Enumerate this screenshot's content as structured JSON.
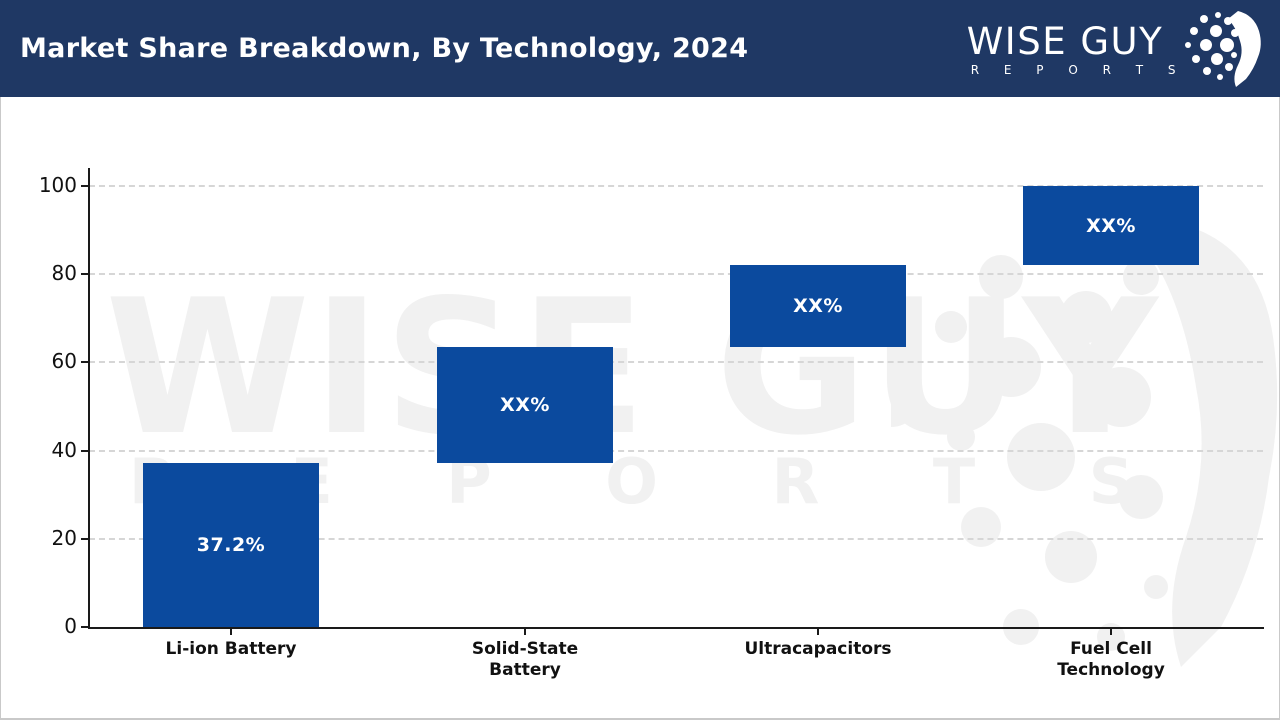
{
  "header": {
    "title": "Market Share Breakdown, By Technology, 2024",
    "logo": {
      "name": "WISE GUY",
      "sub": "R E P O R T S"
    }
  },
  "watermark": {
    "name": "WISE GUY",
    "sub": "R E P O R T S"
  },
  "colors": {
    "header_bg": "#1f3864",
    "bar": "#0b4a9e",
    "bar_label": "#ffffff",
    "grid": "#d6d6d6",
    "axis": "#1a1a1a",
    "watermark": "#f1f1f1"
  },
  "chart_data": {
    "type": "bar",
    "variant": "waterfall",
    "title": "Market Share Breakdown, By Technology, 2024",
    "categories": [
      "Li-ion Battery",
      "Solid-State\nBattery",
      "Ultracapacitors",
      "Fuel Cell\nTechnology"
    ],
    "segments": [
      {
        "category": "Li-ion Battery",
        "start": 0,
        "end": 37.2,
        "label": "37.2%"
      },
      {
        "category": "Solid-State Battery",
        "start": 37.2,
        "end": 63.4,
        "label": "XX%"
      },
      {
        "category": "Ultracapacitors",
        "start": 63.4,
        "end": 82.0,
        "label": "XX%"
      },
      {
        "category": "Fuel Cell Technology",
        "start": 82.0,
        "end": 100,
        "label": "XX%"
      }
    ],
    "yticks": [
      0,
      20,
      40,
      60,
      80,
      100
    ],
    "ylim": [
      0,
      105
    ],
    "xlabel": "",
    "ylabel": "",
    "grid": "horizontal-dashed",
    "legend": "none"
  }
}
